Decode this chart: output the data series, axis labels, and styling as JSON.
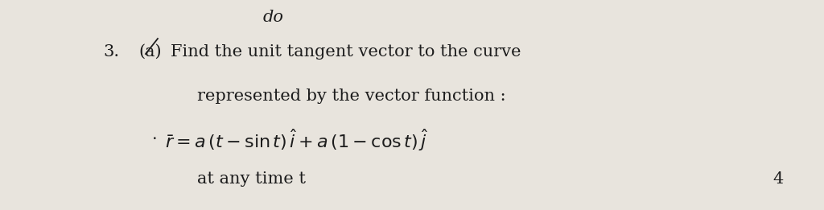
{
  "background_color": "#e8e4dd",
  "text_color": "#1c1c1c",
  "top_text": "do",
  "number": "3.",
  "part": "(a)",
  "line1": "Find the unit tangent vector to the curve",
  "line2": "represented by the vector function :",
  "line4": "at any time t",
  "mark": "4",
  "fig_width": 10.24,
  "fig_height": 2.61,
  "dpi": 100,
  "font_size": 15
}
